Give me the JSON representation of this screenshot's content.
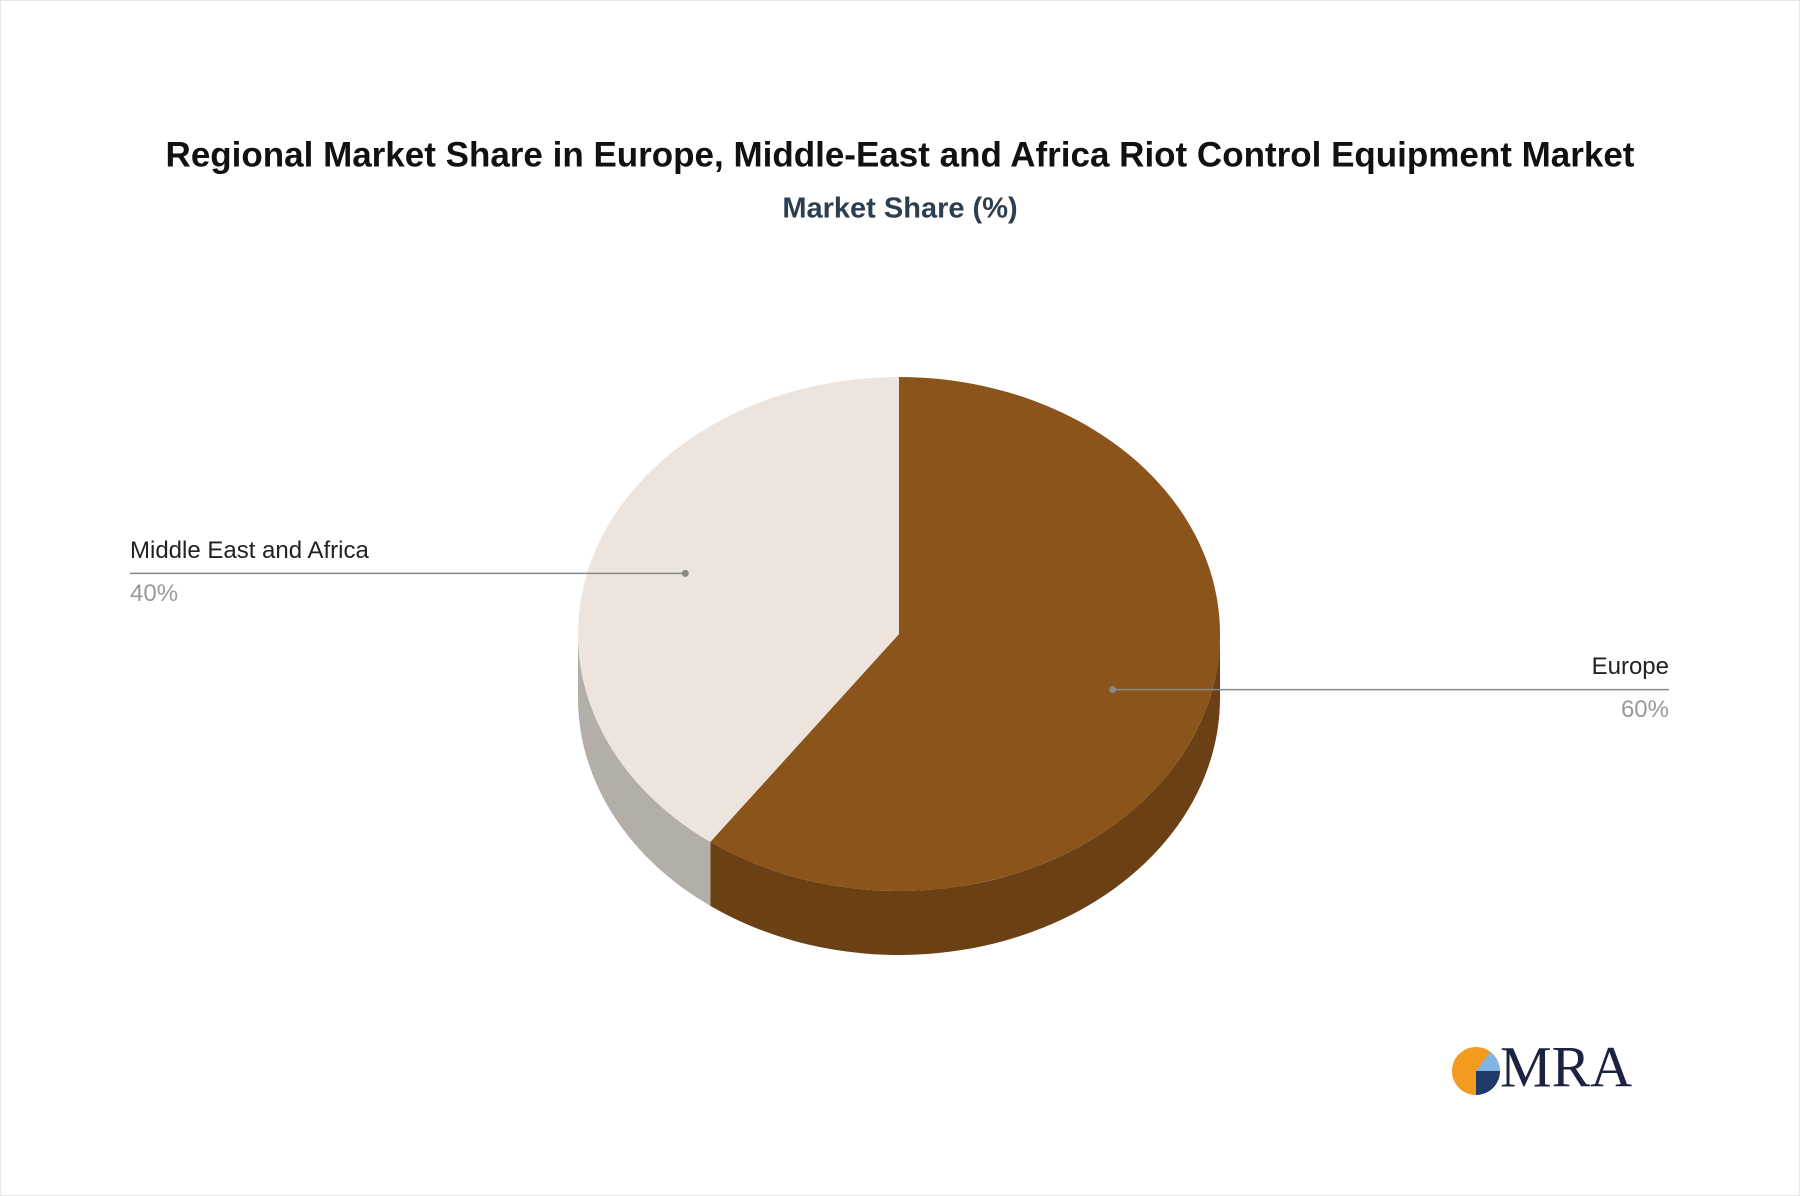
{
  "chart_data": {
    "type": "pie",
    "title": "Regional Market Share in Europe, Middle-East and Africa Riot Control Equipment Market",
    "subtitle": "Market Share (%)",
    "categories": [
      "Europe",
      "Middle East and Africa"
    ],
    "values": [
      60,
      40
    ],
    "value_labels": [
      "60%",
      "40%"
    ],
    "colors": [
      "#8b541a",
      "#ede5dd"
    ]
  },
  "logo": "MRA"
}
